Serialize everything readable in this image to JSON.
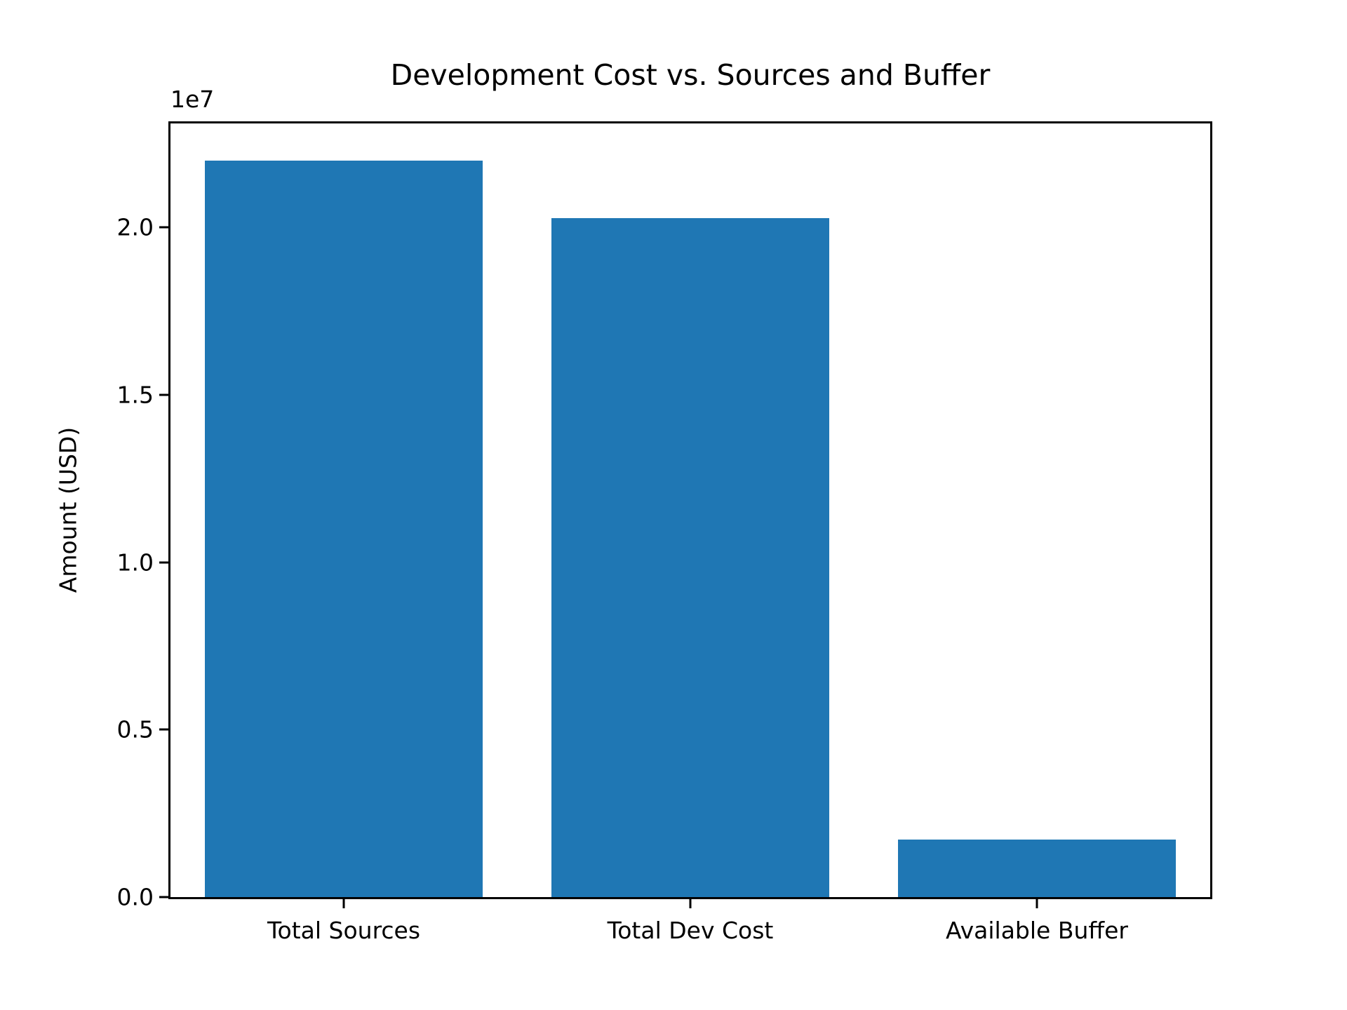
{
  "chart_data": {
    "type": "bar",
    "title": "Development Cost vs. Sources and Buffer",
    "ylabel": "Amount (USD)",
    "xlabel": "",
    "offset_text": "1e7",
    "categories": [
      "Total Sources",
      "Total Dev Cost",
      "Available Buffer"
    ],
    "values": [
      22000000,
      20280000,
      1720000
    ],
    "ylim": [
      0,
      23100000
    ],
    "yticks": [
      {
        "label": "0.0",
        "value": 0
      },
      {
        "label": "0.5",
        "value": 5000000
      },
      {
        "label": "1.0",
        "value": 10000000
      },
      {
        "label": "1.5",
        "value": 15000000
      },
      {
        "label": "2.0",
        "value": 20000000
      }
    ],
    "bar_color": "#1f77b4",
    "background_color": "#ffffff",
    "grid": false,
    "legend": null
  }
}
